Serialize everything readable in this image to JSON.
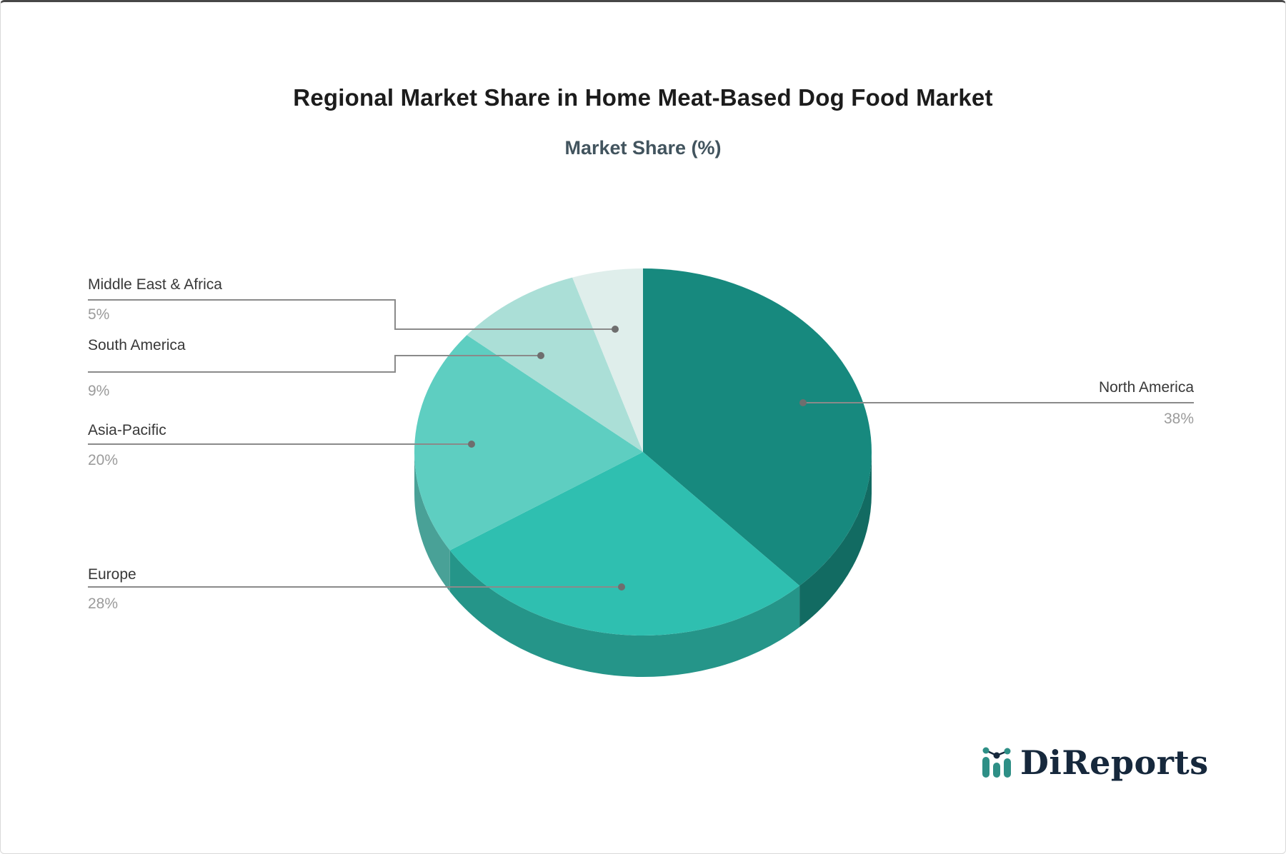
{
  "header": {
    "title": "Regional Market Share in Home Meat-Based Dog Food Market",
    "subtitle": "Market Share (%)"
  },
  "chart_data": {
    "type": "pie",
    "style": "3d",
    "title": "Regional Market Share in Home Meat-Based Dog Food Market",
    "subtitle": "Market Share (%)",
    "unit": "%",
    "start_angle_deg": 0,
    "direction": "clockwise",
    "labels": [
      "North America",
      "Europe",
      "Asia-Pacific",
      "South America",
      "Middle East & Africa"
    ],
    "values": [
      38,
      28,
      20,
      9,
      5
    ],
    "display_values": [
      "38%",
      "28%",
      "20%",
      "9%",
      "5%"
    ],
    "colors": [
      "#17897E",
      "#2FBFB0",
      "#5ECEC1",
      "#ABDFD7",
      "#DFEEEB"
    ],
    "legend_position": "callout-labels",
    "grid": false
  },
  "connector": {
    "line_color": "#8a8a8a",
    "dot_color": "#6e6e6e"
  },
  "logo": {
    "text": "DiReports",
    "icon": "bar-chart-logo-icon",
    "text_color": "#16283c",
    "accent_color": "#2e8f86"
  }
}
